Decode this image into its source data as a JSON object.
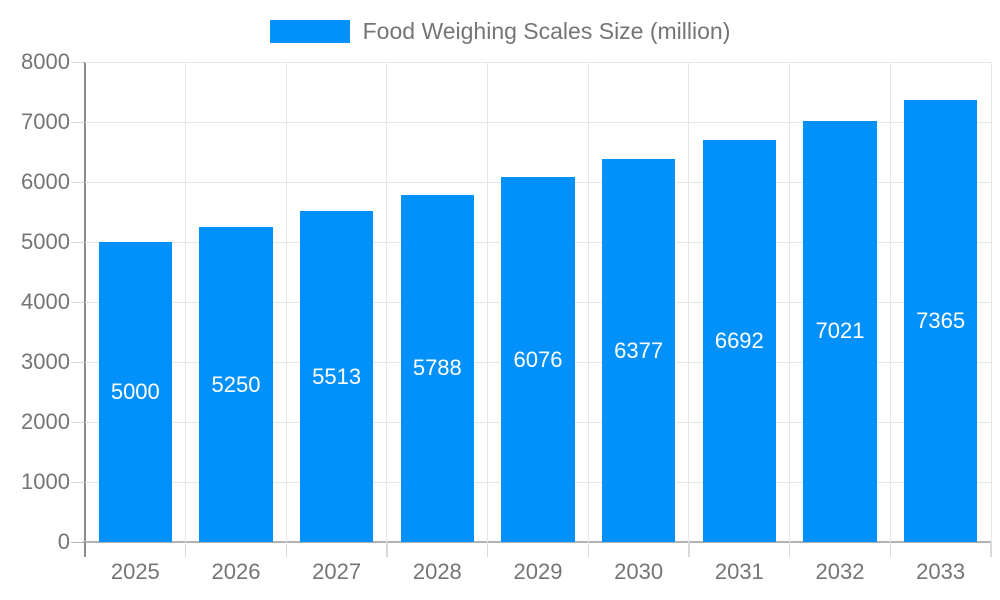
{
  "chart_data": {
    "type": "bar",
    "title": "Food Weighing Scales Size (million)",
    "categories": [
      "2025",
      "2026",
      "2027",
      "2028",
      "2029",
      "2030",
      "2031",
      "2032",
      "2033"
    ],
    "values": [
      5000,
      5250,
      5513,
      5788,
      6076,
      6377,
      6692,
      7021,
      7365
    ],
    "series": [
      {
        "name": "Food Weighing Scales Size (million)",
        "values": [
          5000,
          5250,
          5513,
          5788,
          6076,
          6377,
          6692,
          7021,
          7365
        ]
      }
    ],
    "xlabel": "",
    "ylabel": "",
    "ylim": [
      0,
      8000
    ],
    "yticks": [
      0,
      1000,
      2000,
      3000,
      4000,
      5000,
      6000,
      7000,
      8000
    ],
    "grid": true,
    "legend_position": "top",
    "bar_value_labels_shown": true,
    "colors": {
      "bar": "#0291fb",
      "bar_label": "#ffffff",
      "axis_text": "#757575",
      "grid_line": "#e6e6e6",
      "tick_line": "#d9d9d9",
      "y_axis_line": "#8c8c8c",
      "x_axis_line": "#b3b3b3",
      "background": "#ffffff"
    }
  }
}
